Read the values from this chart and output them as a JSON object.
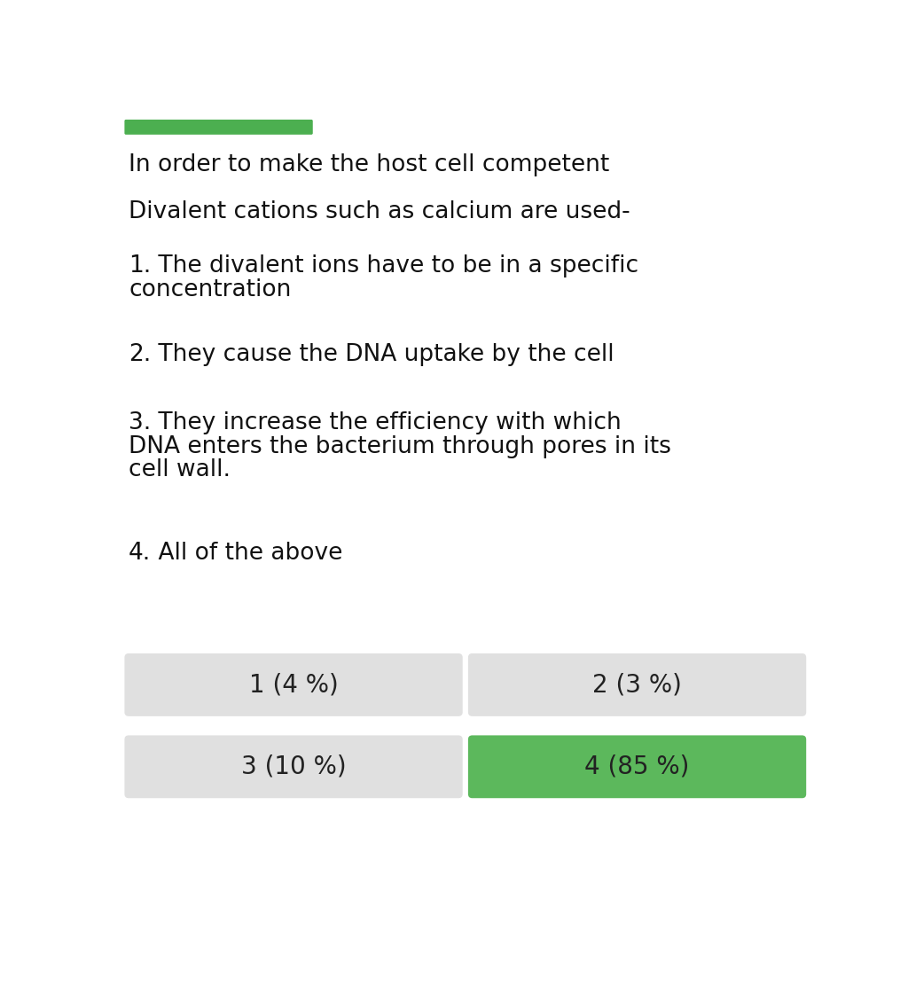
{
  "background_color": "#ffffff",
  "title_line1": "In order to make the host cell competent",
  "subtitle": "Divalent cations such as calcium are used-",
  "options": [
    {
      "num": "1.",
      "line1": "    The divalent ions have to be in a specific",
      "line2": "concentration"
    },
    {
      "num": "2.",
      "line1": "    They cause the DNA uptake by the cell",
      "line2": null
    },
    {
      "num": "3.",
      "line1": "    They increase the efficiency with which",
      "line2": "DNA enters the bacterium through pores in its",
      "line3": "cell wall."
    },
    {
      "num": "4.",
      "line1": "    All of the above",
      "line2": null
    }
  ],
  "buttons": [
    {
      "label": "1 (4 %)",
      "color": "#e0e0e0",
      "text_color": "#222222"
    },
    {
      "label": "2 (3 %)",
      "color": "#e0e0e0",
      "text_color": "#222222"
    },
    {
      "label": "3 (10 %)",
      "color": "#e0e0e0",
      "text_color": "#222222"
    },
    {
      "label": "4 (85 %)",
      "color": "#5cb85c",
      "text_color": "#222222"
    }
  ],
  "top_bar_color": "#4caf50",
  "font_size_main": 19,
  "font_size_buttons": 20,
  "text_color": "#111111"
}
